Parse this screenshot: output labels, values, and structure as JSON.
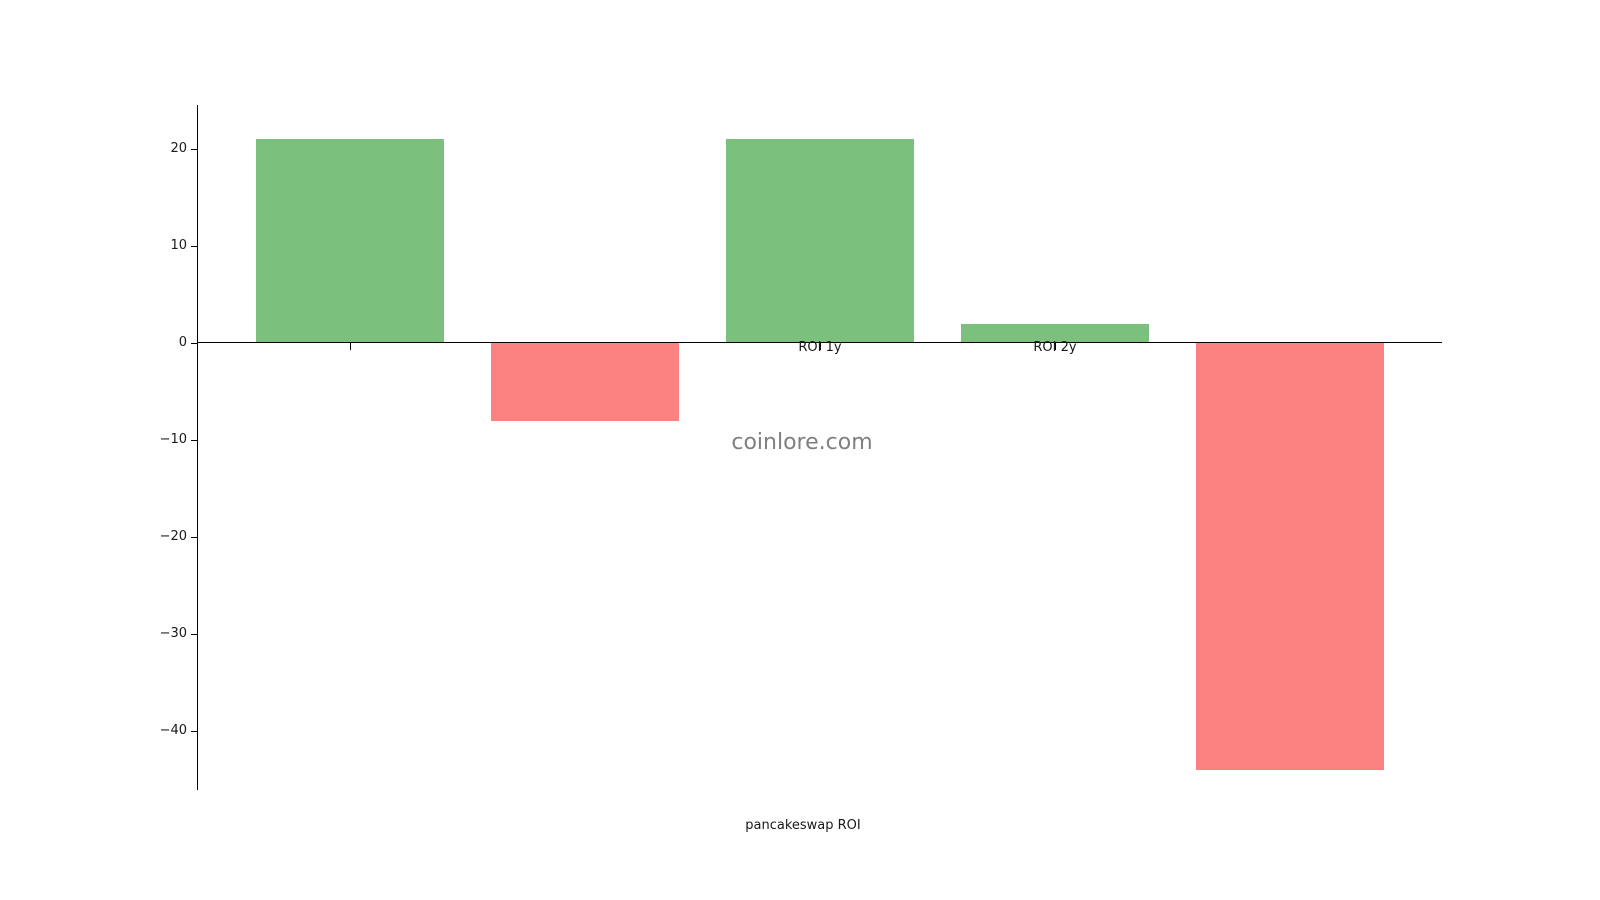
{
  "chart_data": {
    "type": "bar",
    "categories": [
      "",
      "",
      "ROI 1y",
      "ROI 2y",
      ""
    ],
    "values": [
      21,
      -8,
      21,
      2,
      -44
    ],
    "title": "pancakeswap ROI",
    "xlabel": "pancakeswap ROI",
    "ylabel": "",
    "ylim": [
      -46,
      24.5
    ],
    "yticks": [
      20,
      10,
      0,
      -10,
      -20,
      -30,
      -40
    ],
    "ytick_labels": [
      "20",
      "10",
      "0",
      "−10",
      "−20",
      "−30",
      "−40"
    ],
    "grid": false,
    "legend": false,
    "watermark": "coinlore.com",
    "colors": {
      "positive_bar": "#7cc07e",
      "negative_bar": "#fc8181",
      "axis": "#000000",
      "tick_text": "#1a1a1a",
      "watermark_text": "#808080",
      "background": "#ffffff"
    }
  }
}
